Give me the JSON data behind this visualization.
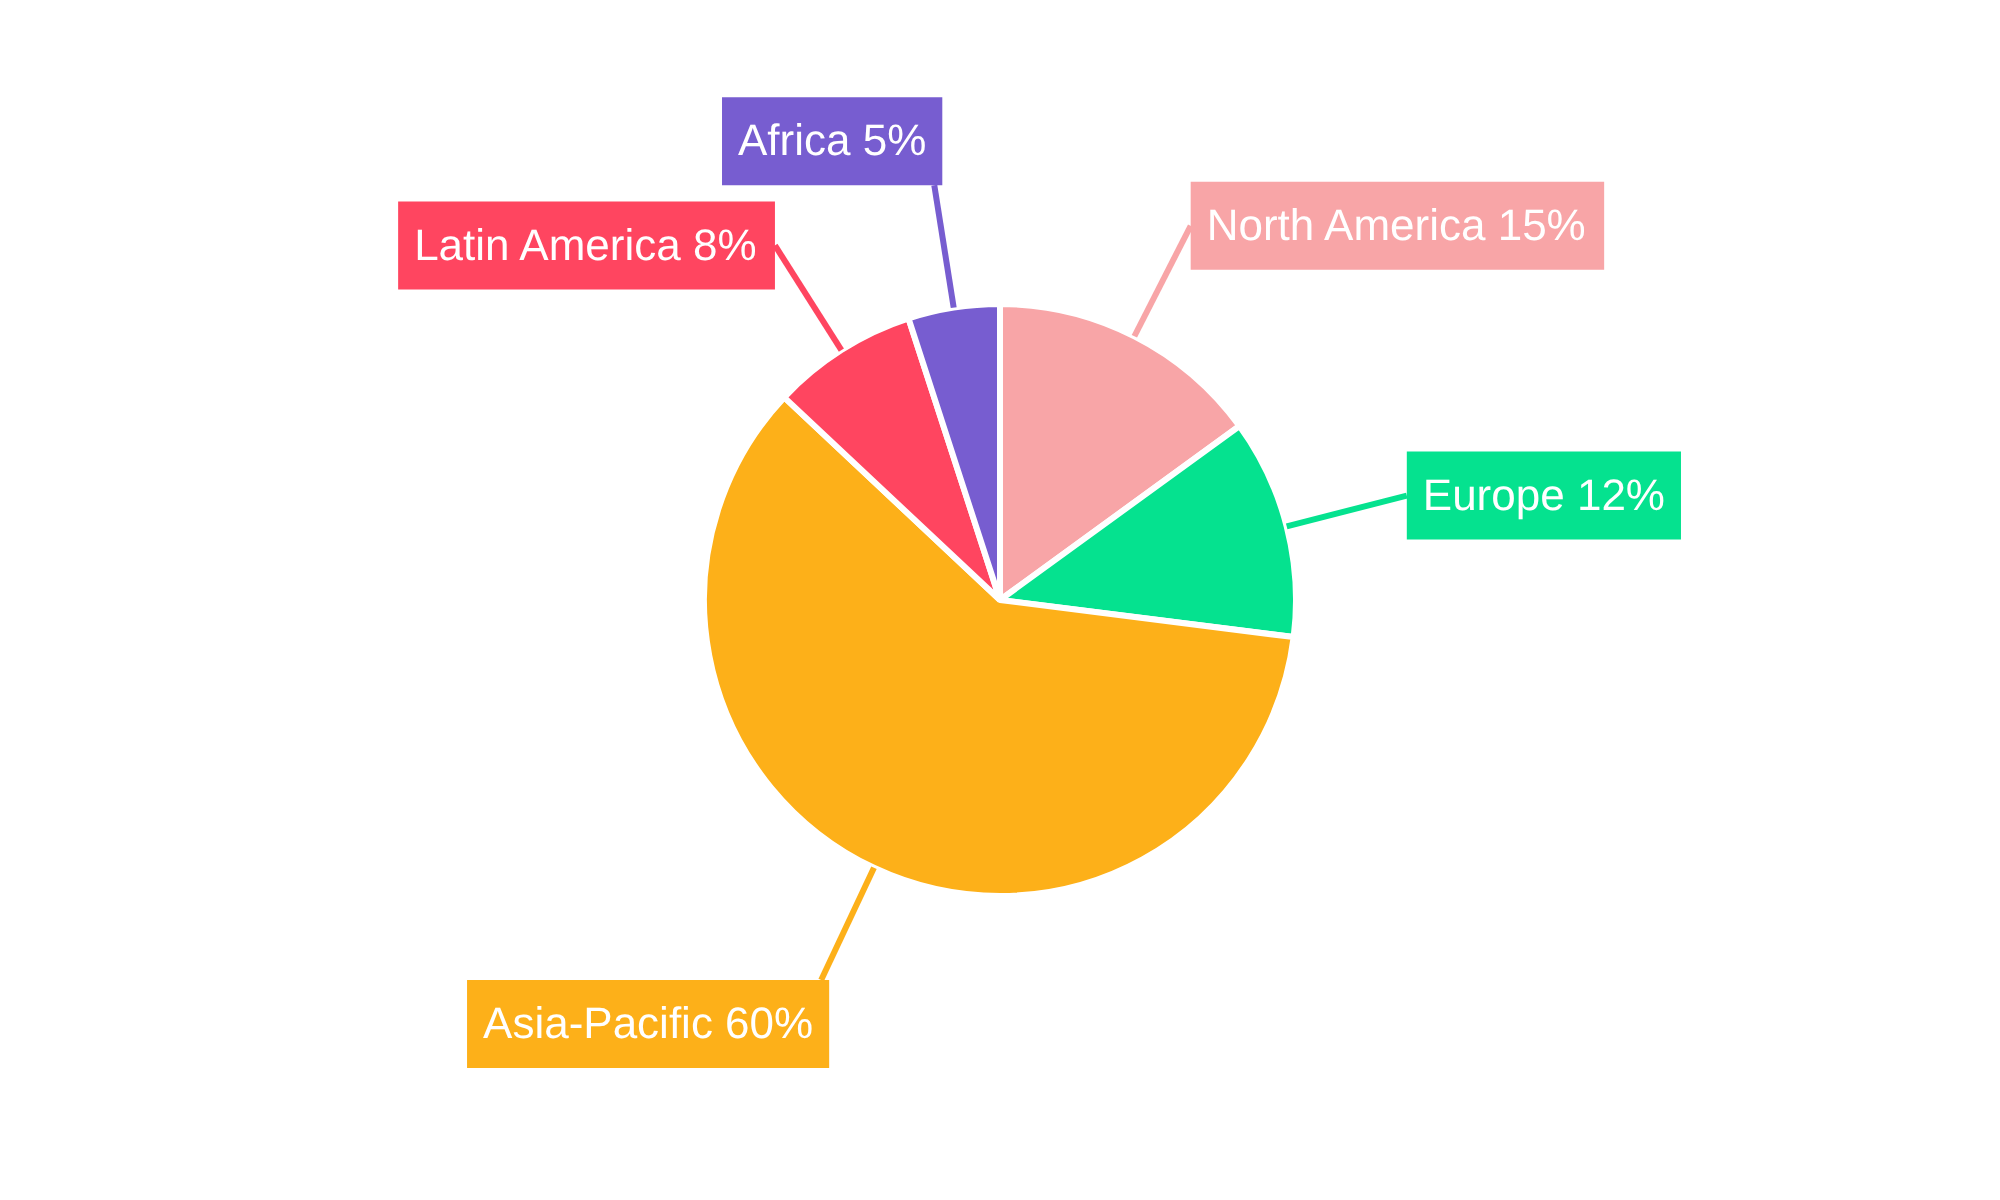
{
  "chart_data": {
    "type": "pie",
    "categories": [
      "North America",
      "Europe",
      "Asia-Pacific",
      "Latin America",
      "Africa"
    ],
    "values": [
      15,
      12,
      60,
      8,
      5
    ],
    "value_labels": [
      "15%",
      "12%",
      "60%",
      "8%",
      "5%"
    ],
    "colors": [
      "#f8a5a7",
      "#05e28f",
      "#fdb019",
      "#ff4560",
      "#775dd0"
    ],
    "legend": false
  }
}
